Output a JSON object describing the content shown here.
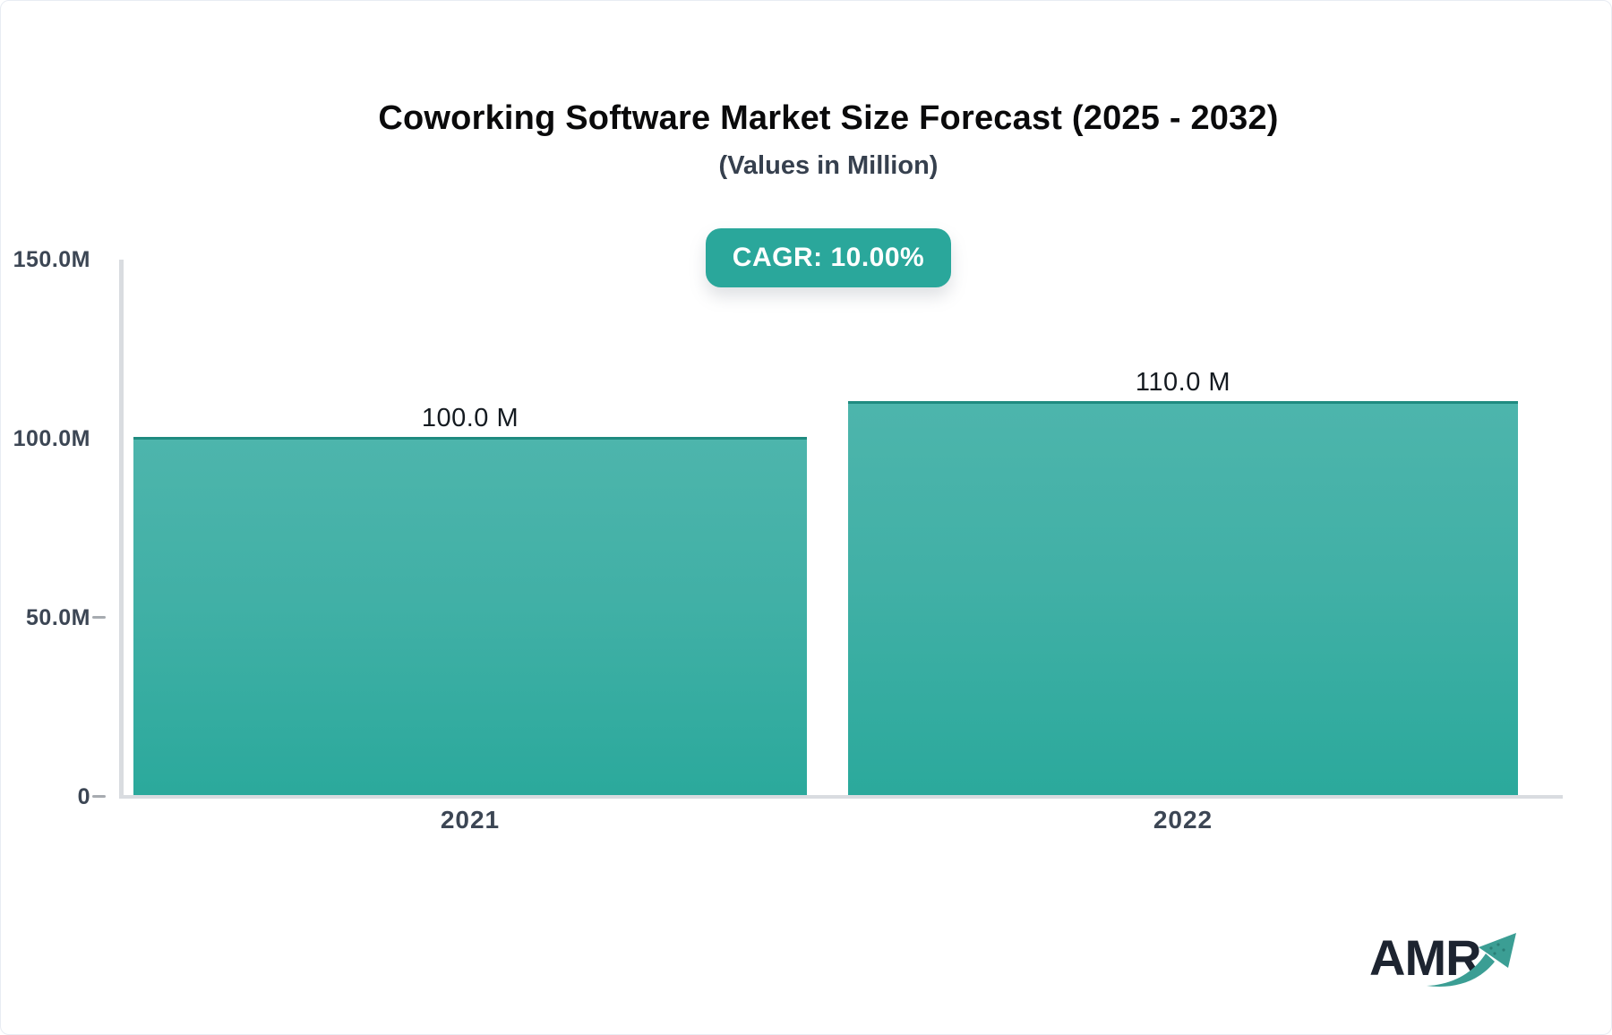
{
  "header": {
    "title": "Coworking Software Market Size Forecast (2025 - 2032)",
    "subtitle": "(Values in Million)",
    "cagr_label": "CAGR: 10.00%"
  },
  "chart_data": {
    "type": "bar",
    "title": "Coworking Software Market Size Forecast (2025 - 2032)",
    "subtitle": "(Values in Million)",
    "unit": "Million",
    "cagr_pct": 10.0,
    "categories": [
      "2021",
      "2022"
    ],
    "values": [
      100.0,
      110.0
    ],
    "value_labels": [
      "100.0 M",
      "110.0 M"
    ],
    "ylim": [
      0,
      150
    ],
    "yticks": [
      150,
      100,
      50,
      0
    ],
    "ytick_labels": [
      "150.0M",
      "100.0M",
      "50.0M",
      "0"
    ],
    "ytick_dashes": [
      false,
      false,
      true,
      true
    ],
    "grid": false,
    "legend": false
  },
  "colors": {
    "bar_top": "#4db5ac",
    "bar_bottom": "#2ba99c",
    "bar_border": "#1f8b80",
    "badge_bg": "#2aa79b",
    "badge_text": "#ffffff",
    "axis_line": "#d9dce0",
    "tick_dash": "#a7abb0",
    "axis_label_text": "#3c4654",
    "value_label_text": "#141a20",
    "title_text": "#0a0a0b",
    "subtitle_text": "#36404e",
    "logo_text_color": "#1d2430",
    "logo_arrow_color": "#3b9e94"
  },
  "logo": {
    "text": "AMR",
    "arrow_icon": "trend-up-arrow"
  }
}
